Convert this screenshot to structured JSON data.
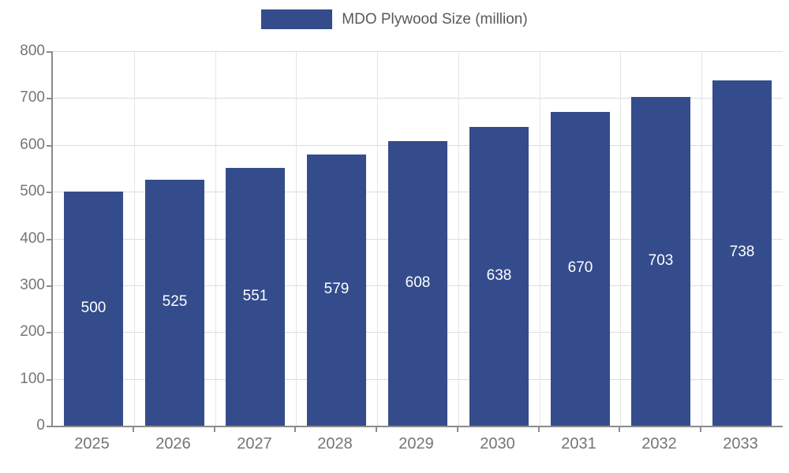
{
  "legend": {
    "label": "MDO Plywood Size (million)"
  },
  "colors": {
    "bar": "#344C8C",
    "bar_label": "#FFFFFF",
    "axis": "#8C8C8C",
    "grid_h": "#DCDCDC",
    "grid_v": "#E4E4E4",
    "tick_label": "#757575",
    "legend_text": "#595959",
    "background": "#FFFFFF"
  },
  "chart_data": {
    "type": "bar",
    "title": "MDO Plywood Size (million)",
    "series_name": "MDO Plywood Size (million)",
    "categories": [
      "2025",
      "2026",
      "2027",
      "2028",
      "2029",
      "2030",
      "2031",
      "2032",
      "2033"
    ],
    "values": [
      500,
      525,
      551,
      579,
      608,
      638,
      670,
      703,
      738
    ],
    "xlabel": "",
    "ylabel": "",
    "ylim": [
      0,
      800
    ],
    "yticks": [
      0,
      100,
      200,
      300,
      400,
      500,
      600,
      700,
      800
    ],
    "grid": "horizontal and vertical light gray gridlines",
    "legend_position": "top-center",
    "value_labels": "white, centered at mid-height of each bar"
  }
}
